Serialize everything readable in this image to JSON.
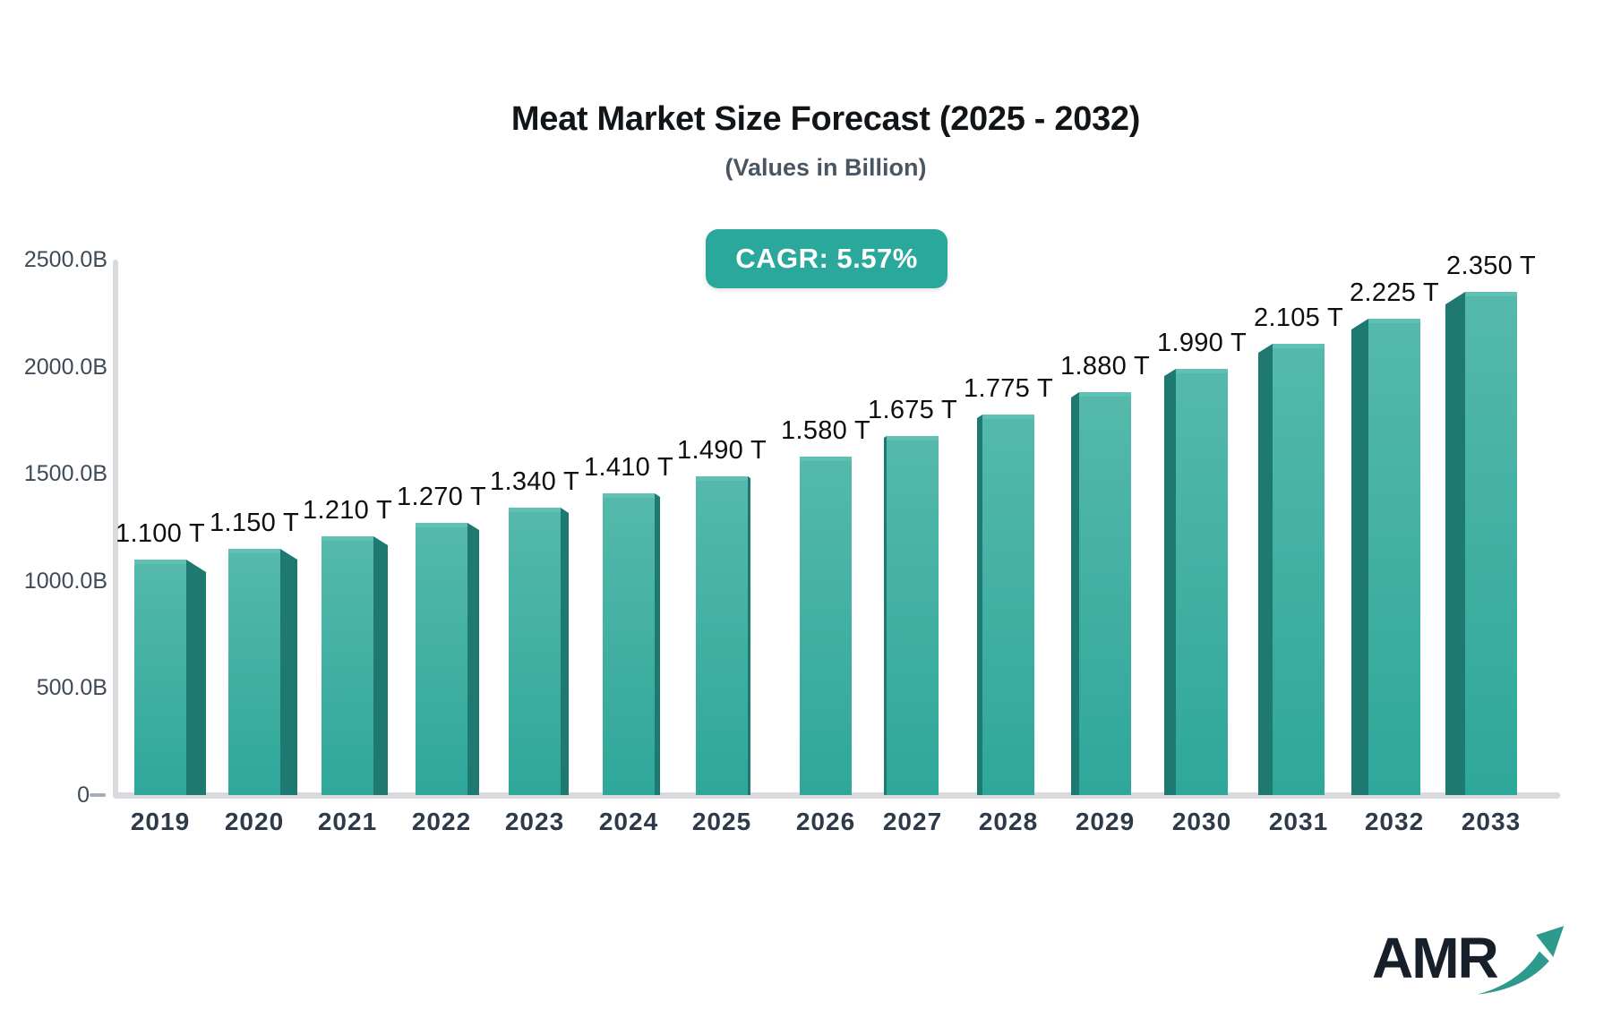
{
  "chart_data": {
    "type": "bar",
    "title": "Meat Market Size Forecast (2025 - 2032)",
    "subtitle": "(Values in Billion)",
    "annotation": "CAGR: 5.57%",
    "categories": [
      "2019",
      "2020",
      "2021",
      "2022",
      "2023",
      "2024",
      "2025",
      "2026",
      "2027",
      "2028",
      "2029",
      "2030",
      "2031",
      "2032",
      "2033"
    ],
    "values": [
      1100,
      1150,
      1210,
      1270,
      1340,
      1410,
      1490,
      1580,
      1675,
      1775,
      1880,
      1990,
      2105,
      2225,
      2350
    ],
    "value_labels": [
      "1.100 T",
      "1.150 T",
      "1.210 T",
      "1.270 T",
      "1.340 T",
      "1.410 T",
      "1.490 T",
      "1.580 T",
      "1.675 T",
      "1.775 T",
      "1.880 T",
      "1.990 T",
      "2.105 T",
      "2.225 T",
      "2.350 T"
    ],
    "values_unit": "Billion",
    "ylim": [
      0,
      2500
    ],
    "yaxis_ticks": [
      {
        "value": 2500,
        "label": "2500.0B"
      },
      {
        "value": 2000,
        "label": "2000.0B"
      },
      {
        "value": 1500,
        "label": "1500.0B"
      },
      {
        "value": 1000,
        "label": "1000.0B"
      },
      {
        "value": 500,
        "label": "500.0B"
      },
      {
        "value": 0,
        "label": "0"
      }
    ],
    "grid": false,
    "legend": false
  },
  "badge": {
    "label": "CAGR: 5.57%"
  },
  "logo": {
    "text": "AMR"
  },
  "colors": {
    "badge_bg": "#2aa89b",
    "bar_face_top": "#55b9ac",
    "bar_face_bottom": "#2ea79a",
    "bar_side": "#1e7a71",
    "bar_cap": "#5fc0b3",
    "axis_line": "#d8dade",
    "zero_tick": "#a8adb5",
    "logo_arrow": "#2d9a8e"
  }
}
